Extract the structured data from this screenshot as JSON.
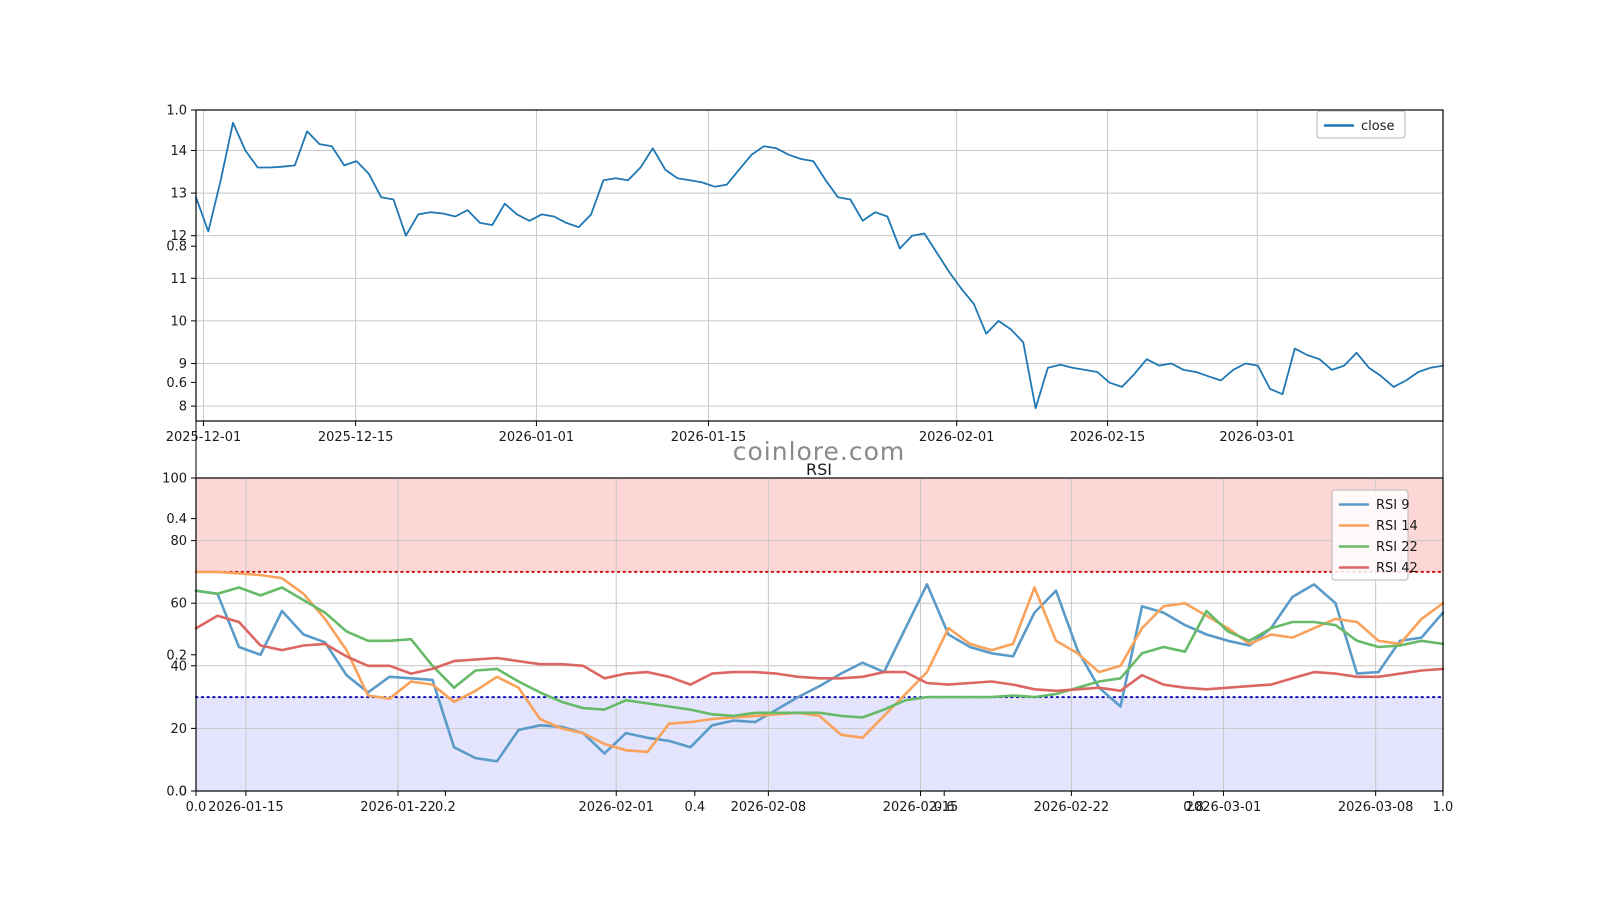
{
  "page": {
    "background": "#ffffff"
  },
  "watermark": {
    "text": "coinlore.com",
    "color": "#8a8a8a"
  },
  "overlay_axis": {
    "yticks": [
      "1.0",
      "0.8",
      "0.6",
      "0.4",
      "0.2",
      "0.0"
    ],
    "xticks": [
      "0.0",
      "0.2",
      "0.4",
      "0.6",
      "0.8",
      "1.0"
    ]
  },
  "chart_data": [
    {
      "id": "price",
      "type": "line",
      "title": "",
      "x_range": [
        "2025-12-01",
        "2026-03-12"
      ],
      "ylim": [
        7.65,
        14.95
      ],
      "yticks": [
        8,
        9,
        10,
        11,
        12,
        13,
        14
      ],
      "grid": true,
      "xticks": [
        {
          "label": "2025-12-01",
          "pos": 0.006
        },
        {
          "label": "2025-12-15",
          "pos": 0.128
        },
        {
          "label": "2026-01-01",
          "pos": 0.273
        },
        {
          "label": "2026-01-15",
          "pos": 0.411
        },
        {
          "label": "2026-02-01",
          "pos": 0.61
        },
        {
          "label": "2026-02-15",
          "pos": 0.731
        },
        {
          "label": "2026-03-01",
          "pos": 0.851
        }
      ],
      "legend": {
        "position": "upper-right",
        "entries": [
          {
            "label": "close",
            "color": "#1f77b4"
          }
        ]
      },
      "series": [
        {
          "name": "close",
          "color": "#1f77b4",
          "width": 1.8,
          "values": [
            12.9,
            12.1,
            13.3,
            14.65,
            14.0,
            13.6,
            13.6,
            13.62,
            13.65,
            14.45,
            14.15,
            14.1,
            13.65,
            13.75,
            13.45,
            12.9,
            12.85,
            12.0,
            12.5,
            12.55,
            12.52,
            12.45,
            12.6,
            12.3,
            12.25,
            12.75,
            12.5,
            12.35,
            12.5,
            12.45,
            12.3,
            12.2,
            12.5,
            13.3,
            13.35,
            13.3,
            13.6,
            14.05,
            13.55,
            13.35,
            13.3,
            13.25,
            13.15,
            13.2,
            13.55,
            13.9,
            14.1,
            14.05,
            13.9,
            13.8,
            13.75,
            13.3,
            12.9,
            12.85,
            12.35,
            12.55,
            12.45,
            11.7,
            12.0,
            12.05,
            11.6,
            11.15,
            10.75,
            10.4,
            9.7,
            10.0,
            9.8,
            9.5,
            7.95,
            8.9,
            8.97,
            8.9,
            8.85,
            8.8,
            8.55,
            8.45,
            8.75,
            9.1,
            8.95,
            9.0,
            8.85,
            8.8,
            8.7,
            8.6,
            8.85,
            9.0,
            8.95,
            8.4,
            8.28,
            9.35,
            9.2,
            9.1,
            8.85,
            8.95,
            9.25,
            8.9,
            8.7,
            8.45,
            8.6,
            8.8,
            8.9,
            8.95
          ]
        }
      ]
    },
    {
      "id": "rsi",
      "type": "line",
      "title": "RSI",
      "x_range": [
        "2026-01-13",
        "2026-03-12"
      ],
      "ylim": [
        0,
        100
      ],
      "yticks": [
        0,
        20,
        40,
        60,
        80,
        100
      ],
      "grid": true,
      "xticks": [
        {
          "label": "2026-01-15",
          "pos": 0.04
        },
        {
          "label": "2026-01-22",
          "pos": 0.162
        },
        {
          "label": "2026-02-01",
          "pos": 0.337
        },
        {
          "label": "2026-02-08",
          "pos": 0.459
        },
        {
          "label": "2026-02-15",
          "pos": 0.581
        },
        {
          "label": "2026-02-22",
          "pos": 0.702
        },
        {
          "label": "2026-03-01",
          "pos": 0.824
        },
        {
          "label": "2026-03-08",
          "pos": 0.946
        }
      ],
      "bands": [
        {
          "name": "overbought-band",
          "from": 70,
          "to": 100,
          "color": "#f96a6d",
          "opacity": 0.28
        },
        {
          "name": "oversold-band",
          "from": 0,
          "to": 30,
          "color": "#6a6af0",
          "opacity": 0.18
        }
      ],
      "levels": [
        {
          "value": 70,
          "color": "#cc1111"
        },
        {
          "value": 30,
          "color": "#1111bb"
        }
      ],
      "legend": {
        "position": "upper-right",
        "entries": [
          {
            "label": "RSI 9",
            "color": "#5b9bc9"
          },
          {
            "label": "RSI 14",
            "color": "#f8a25b"
          },
          {
            "label": "RSI 22",
            "color": "#66ba68"
          },
          {
            "label": "RSI 42",
            "color": "#dc6662"
          }
        ]
      },
      "series": [
        {
          "name": "RSI 9",
          "color": "#5b9bc9",
          "width": 2.6,
          "values": [
            64,
            63,
            46,
            43.5,
            57.5,
            50,
            47.5,
            37,
            31.5,
            36.5,
            36,
            35.5,
            14,
            10.5,
            9.5,
            19.5,
            21,
            20.5,
            18.5,
            12,
            18.5,
            17,
            16,
            14,
            21,
            22.5,
            22,
            26,
            30,
            33.5,
            37.5,
            41,
            38,
            52,
            66,
            50,
            46,
            44,
            43,
            57,
            64,
            45,
            33,
            27,
            59,
            57,
            53,
            50,
            48,
            46.5,
            52,
            62,
            66,
            60,
            37.5,
            38,
            48,
            49,
            57
          ]
        },
        {
          "name": "RSI 14",
          "color": "#f8a25b",
          "width": 2.6,
          "values": [
            70,
            70,
            69.5,
            69,
            68,
            63,
            55,
            45,
            30.5,
            29.5,
            35,
            34,
            28.5,
            32,
            36.5,
            33,
            23,
            20,
            18.5,
            15,
            13,
            12.5,
            21.5,
            22,
            23,
            23.5,
            24,
            24.5,
            25,
            24,
            18,
            17,
            24,
            31,
            38,
            52,
            47,
            45,
            47,
            65,
            48,
            44,
            38,
            40,
            52,
            59,
            60,
            56,
            52,
            47,
            50,
            49,
            52,
            55,
            54,
            48,
            47,
            55,
            60
          ]
        },
        {
          "name": "RSI 22",
          "color": "#66ba68",
          "width": 2.6,
          "values": [
            64,
            63,
            65,
            62.5,
            65,
            61,
            57,
            51,
            48,
            48,
            48.5,
            40,
            33,
            38.5,
            39,
            35,
            31.5,
            28.5,
            26.5,
            26,
            29,
            28,
            27,
            26,
            24.5,
            24,
            25,
            25,
            25,
            25,
            24,
            23.5,
            26,
            29,
            30,
            30,
            30,
            30,
            30.5,
            30,
            31,
            33,
            35,
            36,
            44,
            46,
            44.5,
            57.5,
            51,
            48,
            52,
            54,
            54,
            53,
            48,
            46,
            46.5,
            48,
            47
          ]
        },
        {
          "name": "RSI 42",
          "color": "#dc6662",
          "width": 2.6,
          "values": [
            52,
            56,
            54,
            46.5,
            45,
            46.5,
            47,
            43,
            40,
            40,
            37.5,
            39,
            41.5,
            42,
            42.5,
            41.5,
            40.5,
            40.5,
            40,
            36,
            37.5,
            38,
            36.5,
            34,
            37.5,
            38,
            38,
            37.5,
            36.5,
            36,
            36,
            36.5,
            38,
            38,
            34.5,
            34,
            34.5,
            35,
            34,
            32.5,
            32,
            32.5,
            33,
            32,
            37,
            34,
            33,
            32.5,
            33,
            33.5,
            34,
            36,
            38,
            37.5,
            36.5,
            36.5,
            37.5,
            38.5,
            39
          ]
        }
      ]
    }
  ]
}
